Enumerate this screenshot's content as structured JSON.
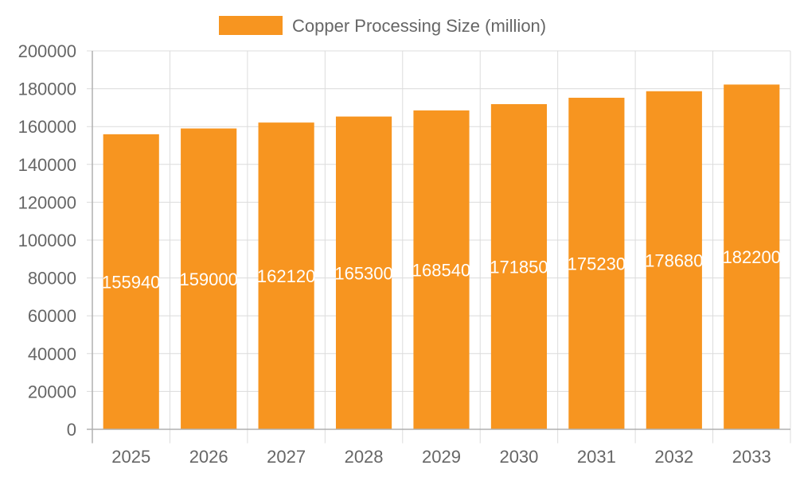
{
  "chart_data": {
    "type": "bar",
    "categories": [
      "2025",
      "2026",
      "2027",
      "2028",
      "2029",
      "2030",
      "2031",
      "2032",
      "2033"
    ],
    "series": [
      {
        "name": "Copper Processing Size (million)",
        "values": [
          155940,
          159000,
          162120,
          165300,
          168540,
          171850,
          175230,
          178680,
          182200
        ],
        "color": "#f79520"
      }
    ],
    "data_labels": [
      "155940",
      "159000",
      "162120",
      "165300",
      "168540",
      "171850",
      "175230",
      "178680",
      "182200"
    ],
    "ylim": [
      0,
      200000
    ],
    "y_ticks": [
      0,
      20000,
      40000,
      60000,
      80000,
      100000,
      120000,
      140000,
      160000,
      180000,
      200000
    ],
    "grid": true,
    "legend_position": "top"
  }
}
